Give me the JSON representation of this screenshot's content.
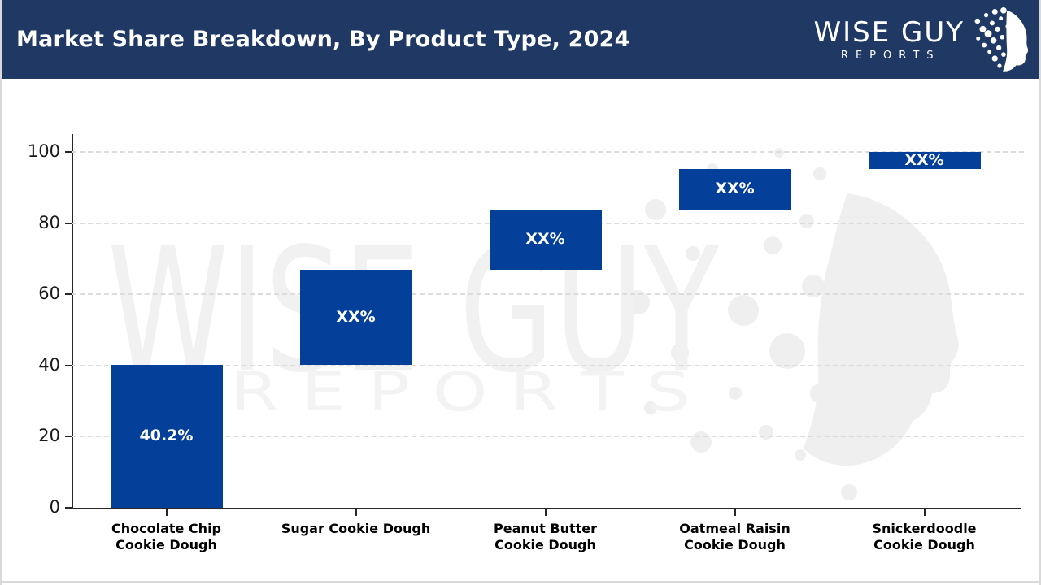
{
  "header": {
    "title": "Market Share Breakdown, By Product Type, 2024",
    "logo": {
      "brand_top": "WISE GUY",
      "brand_bottom": "REPORTS"
    }
  },
  "watermark": {
    "line1": "WISE GUY",
    "line2": "R E P O R T S"
  },
  "colors": {
    "header_bg": "#1F3864",
    "bar": "#04409A",
    "bar_label": "#ffffff",
    "grid": "#dcdcdc",
    "axis": "#262626",
    "watermark": "#f1f1f1"
  },
  "chart_data": {
    "type": "bar",
    "subtype": "waterfall",
    "title": "Market Share Breakdown, By Product Type, 2024",
    "xlabel": "",
    "ylabel": "",
    "ylim": [
      0,
      105
    ],
    "yticks": [
      0,
      20,
      40,
      60,
      80,
      100
    ],
    "grid": "horizontal-dashed",
    "legend": "none",
    "categories": [
      "Chocolate Chip\nCookie Dough",
      "Sugar Cookie Dough",
      "Peanut Butter\nCookie Dough",
      "Oatmeal Raisin\nCookie Dough",
      "Snickerdoodle\nCookie Dough"
    ],
    "bars": [
      {
        "category": "Chocolate Chip Cookie Dough",
        "start": 0,
        "end": 40.2,
        "label": "40.2%"
      },
      {
        "category": "Sugar Cookie Dough",
        "start": 40.2,
        "end": 67.0,
        "label": "XX%"
      },
      {
        "category": "Peanut Butter Cookie Dough",
        "start": 67.0,
        "end": 83.8,
        "label": "XX%"
      },
      {
        "category": "Oatmeal Raisin Cookie Dough",
        "start": 83.8,
        "end": 95.2,
        "label": "XX%"
      },
      {
        "category": "Snickerdoodle Cookie Dough",
        "start": 95.2,
        "end": 100,
        "label": "XX%"
      }
    ]
  }
}
